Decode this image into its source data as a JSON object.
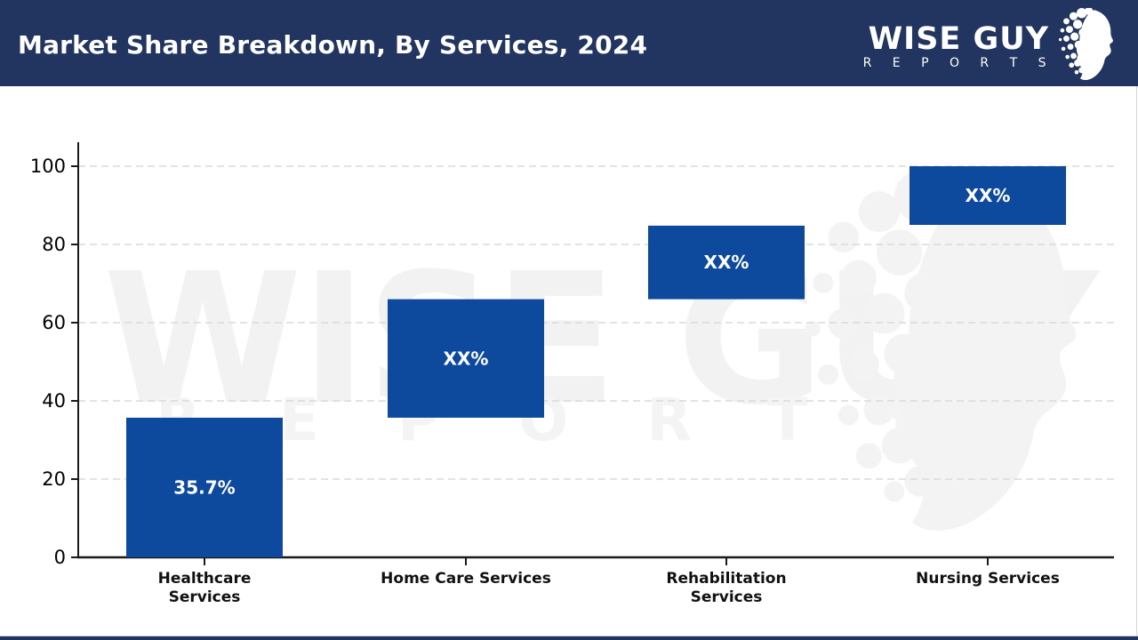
{
  "header": {
    "title": "Market Share Breakdown, By Services, 2024",
    "brand": {
      "line1": "WISE GUY",
      "line2": "R E P O R T S"
    }
  },
  "watermark": {
    "line1": "WISE GUY",
    "line2": "REPORTS"
  },
  "colors": {
    "header_bg": "#213560",
    "bar": "#0d4a9e",
    "bar_label": "#ffffff",
    "axis": "#1a1a1a",
    "grid": "#dadada",
    "tick_label": "#000000",
    "category_label": "#111111",
    "watermark": "#f2f2f2"
  },
  "chart_data": {
    "type": "bar",
    "subtype": "floating-waterfall",
    "title": "Market Share Breakdown, By Services, 2024",
    "categories": [
      "Healthcare Services",
      "Home Care Services",
      "Rehabilitation Services",
      "Nursing Services"
    ],
    "category_label_lines": [
      [
        "Healthcare",
        "Services"
      ],
      [
        "Home Care Services"
      ],
      [
        "Rehabilitation",
        "Services"
      ],
      [
        "Nursing Services"
      ]
    ],
    "series": [
      {
        "name": "Market share (%)",
        "segments": [
          {
            "category": "Healthcare Services",
            "start": 0,
            "end": 35.7,
            "label": "35.7%"
          },
          {
            "category": "Home Care Services",
            "start": 35.7,
            "end": 66.0,
            "label": "XX%"
          },
          {
            "category": "Rehabilitation Services",
            "start": 66.0,
            "end": 84.8,
            "label": "XX%"
          },
          {
            "category": "Nursing Services",
            "start": 85.0,
            "end": 100.0,
            "label": "XX%"
          }
        ]
      }
    ],
    "xlabel": "",
    "ylabel": "",
    "ylim": [
      0,
      106
    ],
    "yticks": [
      0,
      20,
      40,
      60,
      80,
      100
    ],
    "grid": {
      "horizontal": true,
      "style": "dashed",
      "vertical": false
    },
    "legend": null,
    "bar_color": "#0d4a9e",
    "bar_label_color": "#ffffff"
  }
}
